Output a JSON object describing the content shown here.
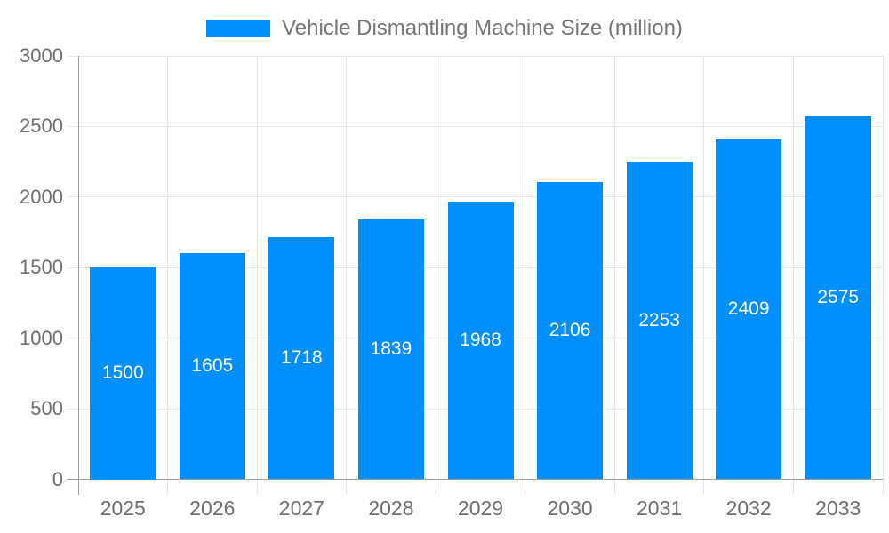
{
  "chart_data": {
    "type": "bar",
    "title": "Vehicle Dismantling Machine Size (million)",
    "categories": [
      "2025",
      "2026",
      "2027",
      "2028",
      "2029",
      "2030",
      "2031",
      "2032",
      "2033"
    ],
    "series": [
      {
        "name": "Vehicle Dismantling Machine Size (million)",
        "color": "#008FFB",
        "values": [
          1500,
          1605,
          1718,
          1839,
          1968,
          2106,
          2253,
          2409,
          2575
        ]
      }
    ],
    "xlabel": "",
    "ylabel": "",
    "ylim": [
      0,
      3000
    ],
    "yticks": [
      0,
      500,
      1000,
      1500,
      2000,
      2500,
      3000
    ],
    "grid": true,
    "legend_position": "top",
    "data_labels_position": "inside-center"
  },
  "legend": {
    "label": "Vehicle Dismantling Machine Size (million)",
    "swatch_color": "#008FFB"
  },
  "colors": {
    "bar": "#008FFB",
    "bar_label": "#ffffff",
    "axis_text": "#6e6e6e",
    "legend_text": "#757575",
    "gridline": "#e7e7e7",
    "axis_line": "#9e9e9e",
    "background": "#ffffff"
  }
}
